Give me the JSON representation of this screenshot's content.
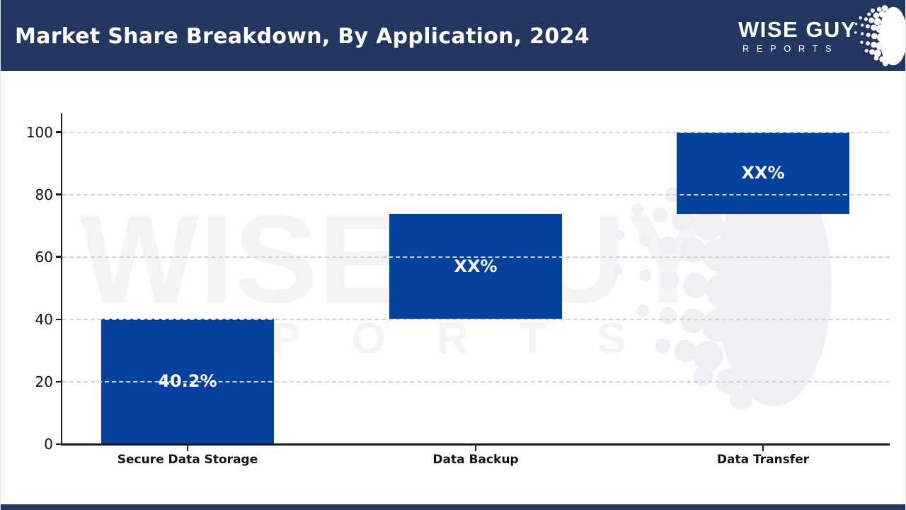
{
  "header": {
    "title": "Market Share Breakdown, By Application, 2024",
    "logo": {
      "wordmark": "WISE GUY",
      "subtext": "REPORTS"
    }
  },
  "watermark": {
    "wordmark": "WISE GUY",
    "subtext": "REPORTS"
  },
  "colors": {
    "header_bg": "#22365f",
    "footer_bg": "#22365f",
    "bar_fill": "#04419e",
    "bar_label_text": "#ffffff",
    "gridline": "#cfd4d9",
    "axis": "#1a1a1a",
    "watermark": "#f3f4f6"
  },
  "chart_data": {
    "type": "bar",
    "subtype": "floating-waterfall",
    "title": "Market Share Breakdown, By Application, 2024",
    "xlabel": "",
    "ylabel": "",
    "categories": [
      "Secure Data Storage",
      "Data Backup",
      "Data Transfer"
    ],
    "bars": [
      {
        "category": "Secure Data Storage",
        "from": 0,
        "to": 40.2,
        "label": "40.2%"
      },
      {
        "category": "Data Backup",
        "from": 40.2,
        "to": 73.7,
        "label": "XX%"
      },
      {
        "category": "Data Transfer",
        "from": 73.7,
        "to": 100,
        "label": "XX%"
      }
    ],
    "yticks": [
      0,
      20,
      40,
      60,
      80,
      100
    ],
    "ylim": [
      0,
      100
    ],
    "grid": "horizontal-dashed",
    "legend": false
  }
}
